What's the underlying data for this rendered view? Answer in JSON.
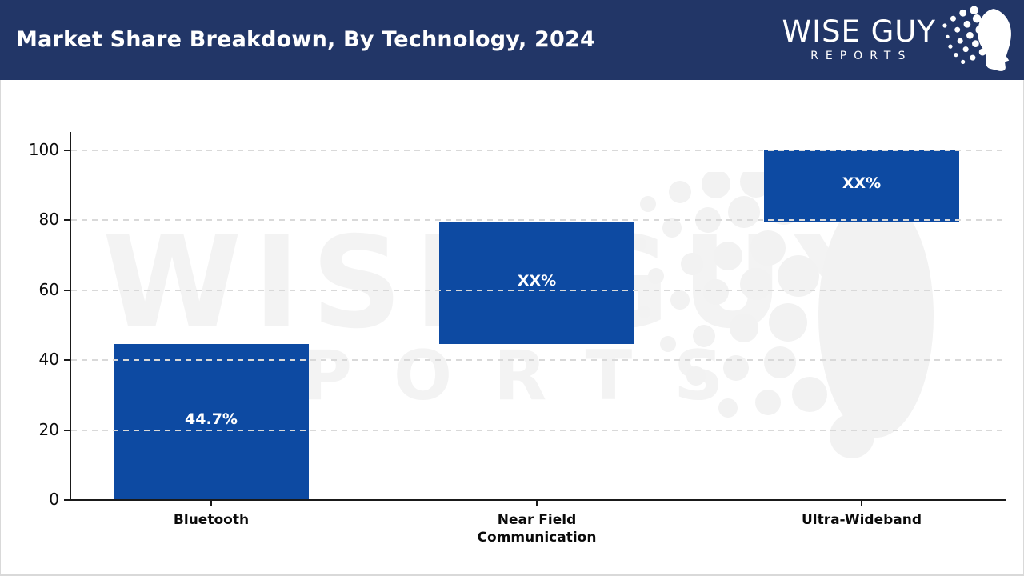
{
  "header": {
    "title": "Market Share Breakdown, By Technology, 2024",
    "background_color": "#223667",
    "logo": {
      "wordmark": "WISE GUY",
      "subtext": "REPORTS"
    }
  },
  "watermark": {
    "line1": "WISE GUY",
    "line2": "REPORTS",
    "color": "#f3f3f3"
  },
  "chart_data": {
    "type": "bar",
    "subtype": "floating-waterfall",
    "title": "Market Share Breakdown, By Technology, 2024",
    "categories": [
      "Bluetooth",
      "Near Field\nCommunication",
      "Ultra-Wideband"
    ],
    "segments": [
      {
        "category": "Bluetooth",
        "start": 0,
        "end": 44.7,
        "label": "44.7%"
      },
      {
        "category": "Near Field Communication",
        "start": 44.7,
        "end": 79.5,
        "label": "XX%"
      },
      {
        "category": "Ultra-Wideband",
        "start": 79.5,
        "end": 100.2,
        "label": "XX%"
      }
    ],
    "xlabel": "",
    "ylabel": "",
    "ylim": [
      0,
      100
    ],
    "yticks": [
      0,
      20,
      40,
      60,
      80,
      100
    ],
    "grid": "horizontal dashed, drawn over bars",
    "legend": "none",
    "bar_color": "#0d4aa2",
    "bar_label_color": "#ffffff",
    "axis_color": "#1a1a1a",
    "gridline_color": "#d9d9d9"
  }
}
